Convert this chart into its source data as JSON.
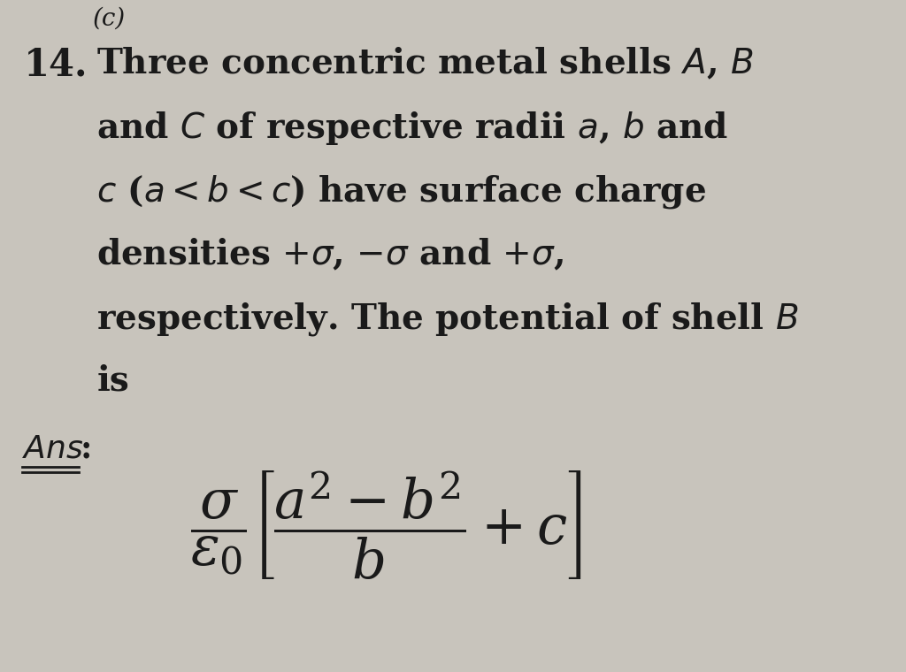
{
  "background_color": "#c8c4bc",
  "text_color": "#1a1a1a",
  "font_size_main": 28,
  "font_size_number": 30,
  "font_size_formula": 44,
  "font_size_ans": 26,
  "font_size_top": 20,
  "line1": "Three concentric metal shells $A$, $B$",
  "line2": "and $C$ of respective radii $a$, $b$ and",
  "line3": "$c$ ($a < b < c$) have surface charge",
  "line4": "densities $+\\sigma$, $-\\sigma$ and $+\\sigma$,",
  "line5": "respectively. The potential of shell $B$",
  "line6": "is",
  "number": "14.",
  "top_text": "(c)",
  "ans_text": "$Ans$:",
  "formula": "$\\dfrac{\\sigma}{\\varepsilon_0}\\left[\\dfrac{a^2-b^2}{b}+c\\right]$"
}
